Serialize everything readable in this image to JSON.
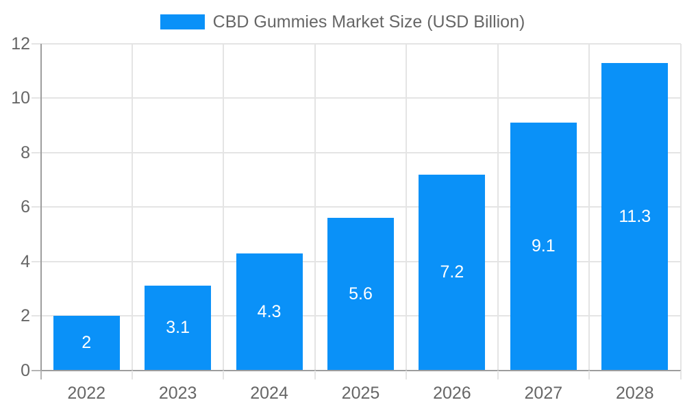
{
  "chart_data": {
    "type": "bar",
    "title": "CBD Gummies Market Size (USD Billion)",
    "categories": [
      "2022",
      "2023",
      "2024",
      "2025",
      "2026",
      "2027",
      "2028"
    ],
    "series": [
      {
        "name": "CBD Gummies Market Size (USD Billion)",
        "values": [
          2,
          3.1,
          4.3,
          5.6,
          7.2,
          9.1,
          11.3
        ]
      }
    ],
    "bar_labels": [
      "2",
      "3.1",
      "4.3",
      "5.6",
      "7.2",
      "9.1",
      "11.3"
    ],
    "xlabel": "",
    "ylabel": "",
    "ylim": [
      0,
      12
    ],
    "yticks": [
      0,
      2,
      4,
      6,
      8,
      10,
      12
    ],
    "grid": true,
    "legend_position": "top",
    "colors": {
      "bar": "#0a91f8",
      "bar_label": "#ffffff",
      "grid_line": "#e4e4e4",
      "axis_line": "#9d9d9d",
      "tick_label": "#666666",
      "background": "#ffffff"
    }
  }
}
